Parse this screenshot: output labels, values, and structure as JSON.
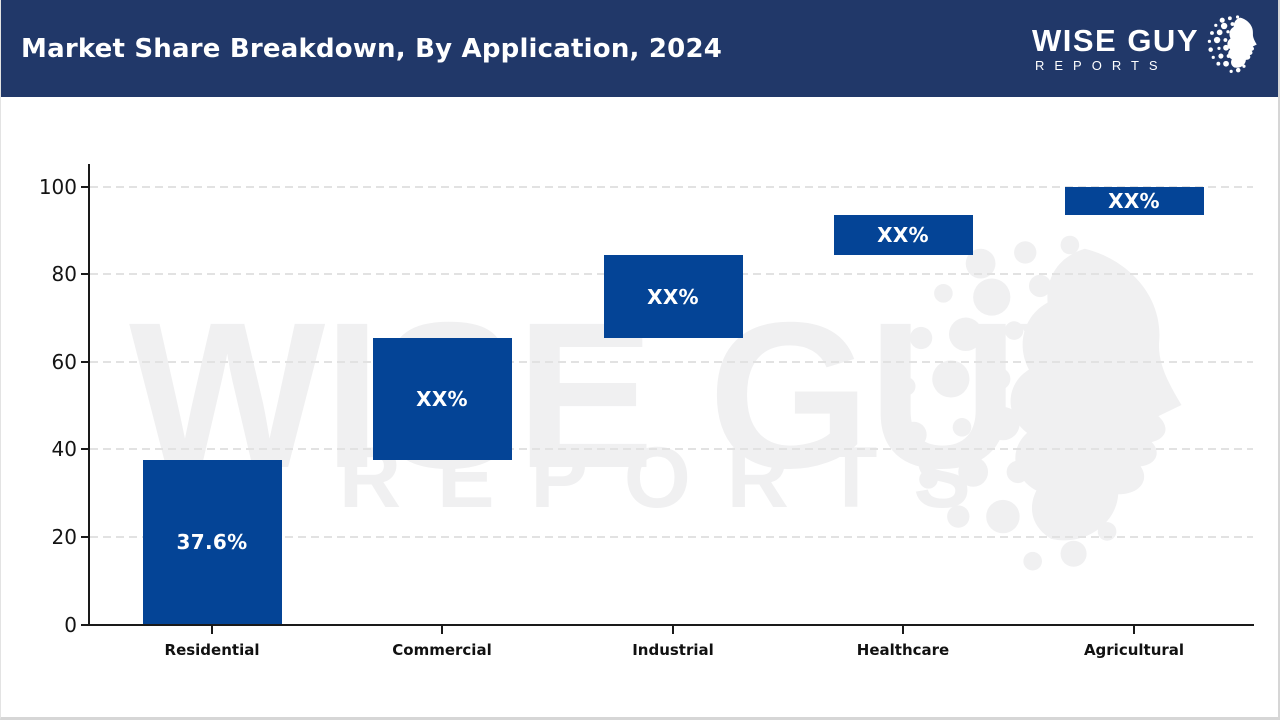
{
  "header": {
    "title": "Market Share Breakdown, By Application, 2024",
    "bg_color": "#213869",
    "logo": {
      "line1": "WISE GUY",
      "line2": "REPORTS"
    }
  },
  "watermark": {
    "line1": "WISE GUY",
    "line2": "REPORTS"
  },
  "chart_data": {
    "type": "bar",
    "subtype": "waterfall-stacked-segments",
    "title": "Market Share Breakdown, By Application, 2024",
    "categories": [
      "Residential",
      "Commercial",
      "Industrial",
      "Healthcare",
      "Agricultural"
    ],
    "segments": [
      {
        "category": "Residential",
        "start": 0,
        "end": 37.6,
        "label": "37.6%"
      },
      {
        "category": "Commercial",
        "start": 37.6,
        "end": 65.3,
        "label": "XX%"
      },
      {
        "category": "Industrial",
        "start": 65.3,
        "end": 84.4,
        "label": "XX%"
      },
      {
        "category": "Healthcare",
        "start": 84.4,
        "end": 93.4,
        "label": "XX%"
      },
      {
        "category": "Agricultural",
        "start": 93.4,
        "end": 100,
        "label": "XX%"
      }
    ],
    "xlabel": "",
    "ylabel": "",
    "ylim": [
      0,
      105
    ],
    "yticks": [
      0,
      20,
      40,
      60,
      80,
      100
    ],
    "grid": "horizontal-dashed",
    "legend": "none",
    "bar_color": "#044496",
    "bar_label_color": "#ffffff",
    "axis_color": "#1a1a1a",
    "gridline_color": "#e2e2e2"
  }
}
